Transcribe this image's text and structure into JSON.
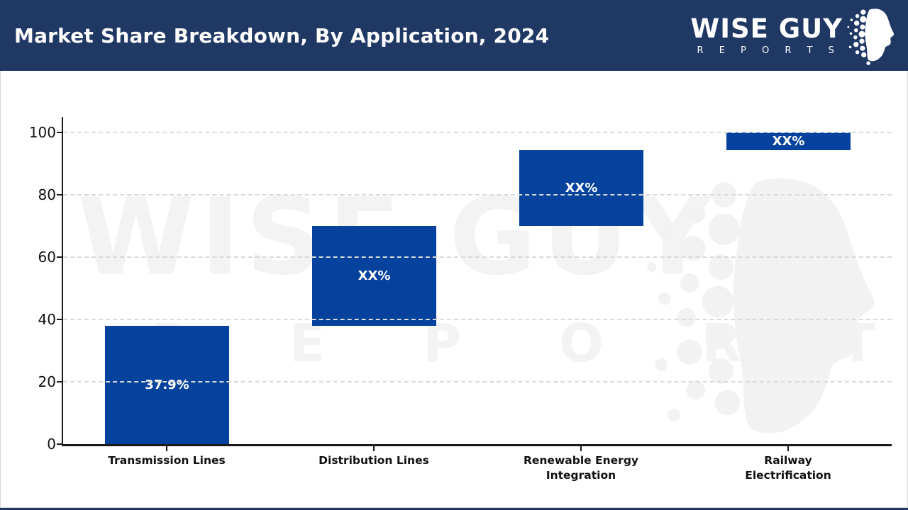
{
  "header": {
    "title": "Market Share Breakdown, By Application, 2024",
    "logo": {
      "name": "Wise Guy Reports",
      "line1": "WISE GUY",
      "line2": "R E P O R T S"
    }
  },
  "watermark": {
    "line1": "WISE GUY",
    "line2": "R E P O R T S"
  },
  "chart_data": {
    "type": "bar",
    "variant": "waterfall-stacked-floating",
    "title": "Market Share Breakdown, By Application, 2024",
    "categories": [
      "Transmission Lines",
      "Distribution Lines",
      "Renewable Energy\nIntegration",
      "Railway\nElectrification"
    ],
    "segments": [
      {
        "category": "Transmission Lines",
        "start": 0,
        "end": 37.9,
        "value": 37.9,
        "label": "37.9%"
      },
      {
        "category": "Distribution Lines",
        "start": 37.9,
        "end": 70.0,
        "value": 32.1,
        "label": "XX%"
      },
      {
        "category": "Renewable Energy Integration",
        "start": 70.0,
        "end": 94.3,
        "value": 24.3,
        "label": "XX%"
      },
      {
        "category": "Railway Electrification",
        "start": 94.3,
        "end": 100.0,
        "value": 5.7,
        "label": "XX%"
      }
    ],
    "xlabel": "",
    "ylabel": "",
    "ylim": [
      0,
      100
    ],
    "yticks": [
      0,
      20,
      40,
      60,
      80,
      100
    ],
    "grid": "horizontal-dashed",
    "legend": false,
    "bar_color": "#05429d",
    "bar_label_color": "#ffffff",
    "grid_color": "#d9d9d9",
    "axis_color": "#1a1a1a"
  },
  "theme": {
    "header_bg": "#1f3864",
    "header_text": "#ffffff",
    "content_bg": "#ffffff",
    "watermark_color": "#f3f3f3",
    "border_color": "#d8d8d8"
  }
}
